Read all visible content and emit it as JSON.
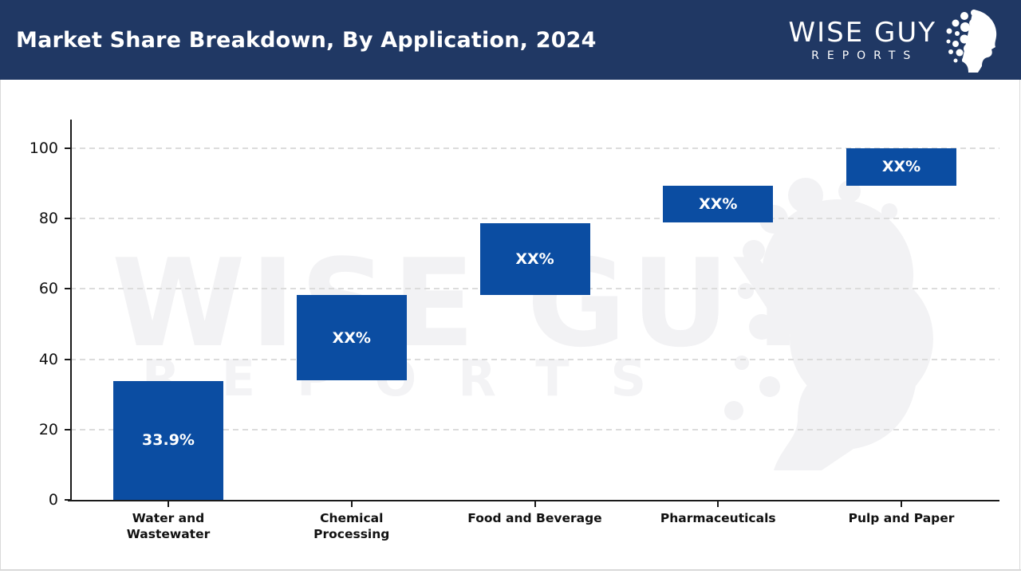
{
  "header": {
    "brand_line1": "WISE GUY",
    "brand_line2": "REPORTS"
  },
  "watermark": {
    "line1": "WISE GUY",
    "line2": "REPORTS"
  },
  "colors": {
    "header_bg": "#203864",
    "bar": "#0B4DA2",
    "bar_label": "#ffffff",
    "grid": "#dcdcdc",
    "axis": "#1a1a1a",
    "watermark": "#f2f2f4"
  },
  "chart_data": {
    "type": "bar",
    "subtype": "waterfall",
    "title": "Market Share Breakdown, By Application, 2024",
    "categories": [
      [
        "Water and",
        "Wastewater"
      ],
      [
        "Chemical",
        "Processing"
      ],
      [
        "Food and Beverage"
      ],
      [
        "Pharmaceuticals"
      ],
      [
        "Pulp and Paper"
      ]
    ],
    "segments": [
      {
        "start": 0,
        "end": 33.9,
        "label": "33.9%"
      },
      {
        "start": 33.9,
        "end": 58.2,
        "label": "XX%"
      },
      {
        "start": 58.2,
        "end": 78.6,
        "label": "XX%"
      },
      {
        "start": 79.0,
        "end": 89.3,
        "label": "XX%"
      },
      {
        "start": 89.4,
        "end": 100,
        "label": "XX%"
      }
    ],
    "xlabel": "",
    "ylabel": "",
    "ylim": [
      0,
      100
    ],
    "yticks": [
      0,
      20,
      40,
      60,
      80,
      100
    ],
    "grid": "horizontal-dashed",
    "legend": "none"
  }
}
